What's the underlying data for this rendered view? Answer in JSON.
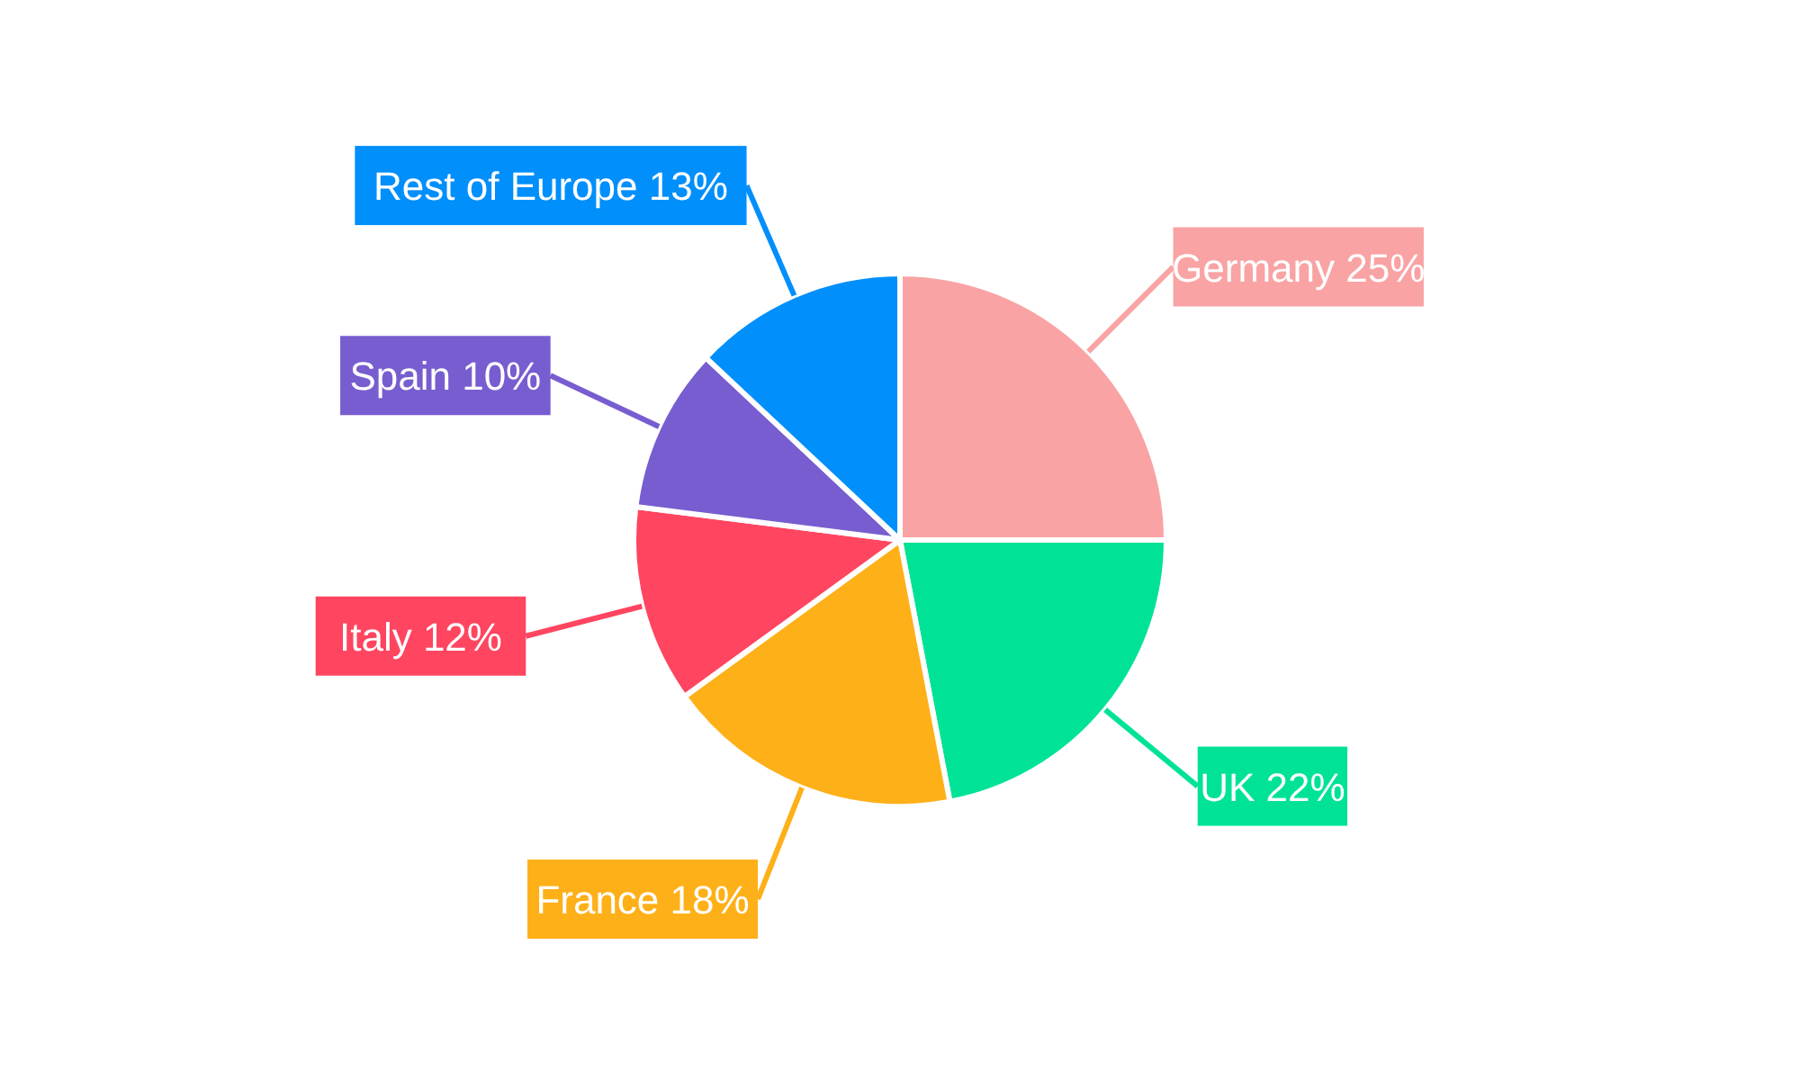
{
  "chart_data": {
    "type": "pie",
    "categories": [
      "Germany",
      "UK",
      "France",
      "Italy",
      "Spain",
      "Rest of Europe"
    ],
    "values": [
      25,
      22,
      18,
      12,
      10,
      13
    ],
    "value_labels": [
      "25%",
      "22%",
      "18%",
      "12%",
      "10%",
      "13%"
    ],
    "colors": [
      "#f9a3a4",
      "#00e396",
      "#feb019",
      "#ff4560",
      "#775dd0",
      "#008ffb"
    ]
  }
}
